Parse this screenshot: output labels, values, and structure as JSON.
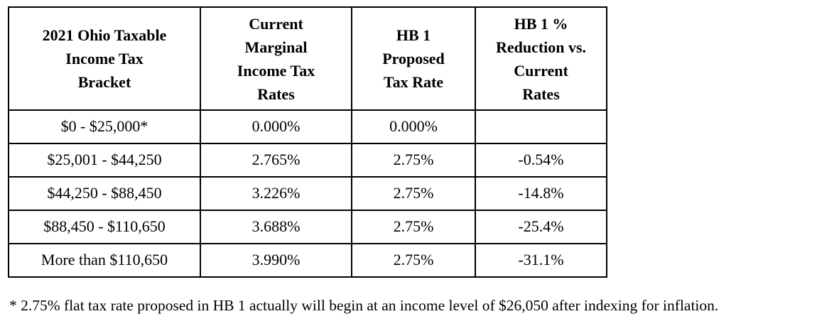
{
  "table": {
    "columns": [
      "2021 Ohio Taxable\nIncome Tax\nBracket",
      "Current\nMarginal\nIncome Tax\nRates",
      "HB 1\nProposed\nTax Rate",
      "HB 1 %\nReduction vs.\nCurrent\nRates"
    ],
    "rows": [
      [
        "$0 - $25,000*",
        "0.000%",
        "0.000%",
        ""
      ],
      [
        "$25,001 - $44,250",
        "2.765%",
        "2.75%",
        "-0.54%"
      ],
      [
        "$44,250 - $88,450",
        "3.226%",
        "2.75%",
        "-14.8%"
      ],
      [
        "$88,450 - $110,650",
        "3.688%",
        "2.75%",
        "-25.4%"
      ],
      [
        "More than $110,650",
        "3.990%",
        "2.75%",
        "-31.1%"
      ]
    ]
  },
  "footnote": "* 2.75% flat tax rate proposed in HB 1 actually will begin at an income level of $26,050 after indexing for inflation.",
  "colors": {
    "border": "#000000",
    "text": "#000000",
    "background": "#ffffff"
  }
}
